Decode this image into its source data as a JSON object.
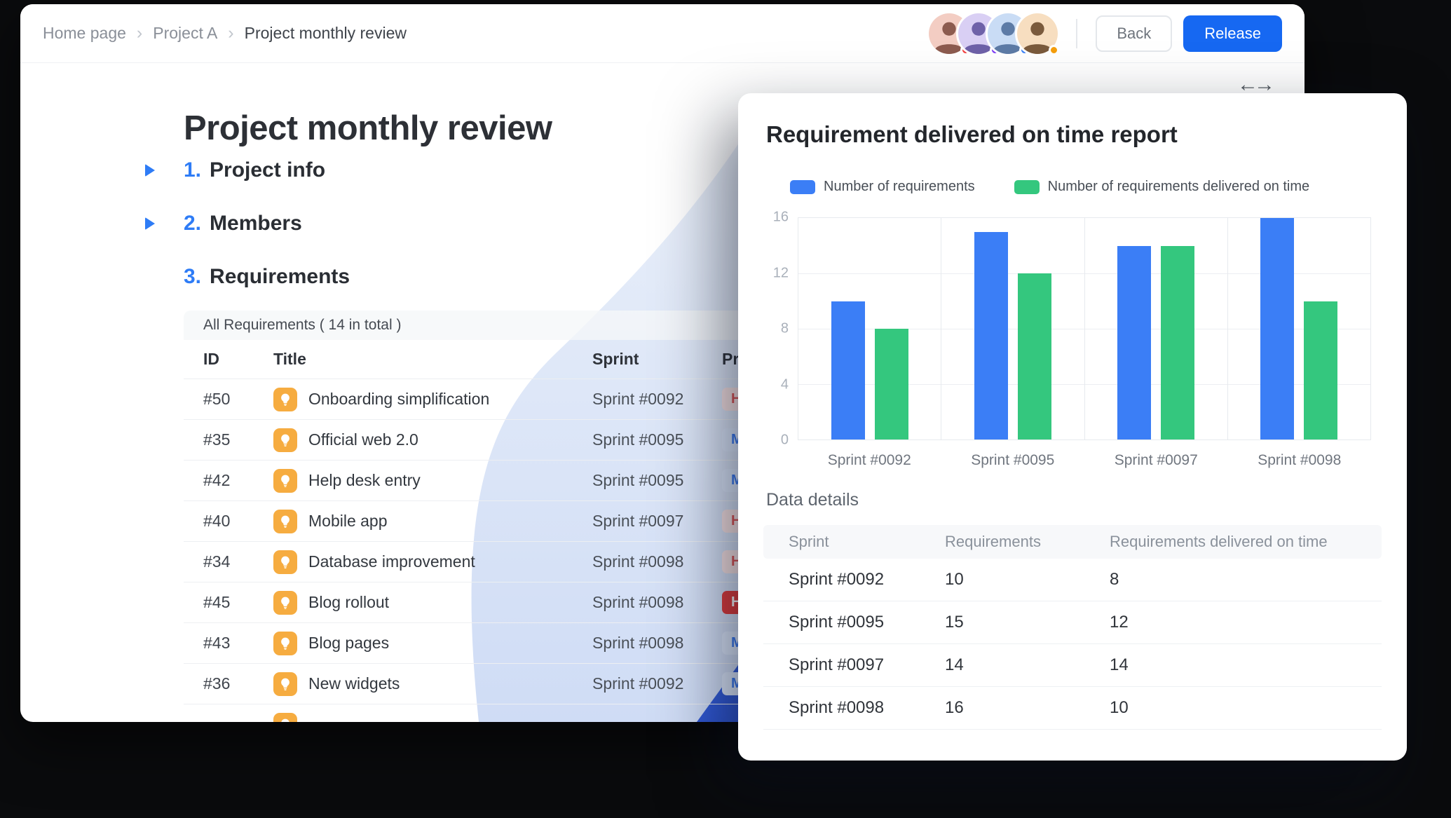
{
  "window": {
    "breadcrumb": {
      "items": [
        "Home page",
        "Project A",
        "Project monthly review"
      ],
      "chevron": "›"
    },
    "toolbar": {
      "back_label": "Back",
      "release_label": "Release",
      "release_color": "#1668F2"
    },
    "avatars": [
      {
        "bg": "#F3CDC3",
        "person": "#8C5B4F",
        "status_color": "#F23E3E"
      },
      {
        "bg": "#D9CFF4",
        "person": "#6E61A8",
        "status_color": "#7C3BF5"
      },
      {
        "bg": "#C9DCF5",
        "person": "#5D7BA6",
        "status_color": "#3B82F6"
      },
      {
        "bg": "#F7DEC0",
        "person": "#7A5A3C",
        "status_color": "#F59E0B"
      }
    ],
    "expand_icon": "←→"
  },
  "document": {
    "title": "Project monthly review",
    "sections": [
      {
        "number": "1.",
        "label": "Project info",
        "marker": true
      },
      {
        "number": "2.",
        "label": "Members",
        "marker": true
      },
      {
        "number": "3.",
        "label": "Requirements",
        "marker": false
      }
    ],
    "requirements_table": {
      "caption": "All Requirements ( 14 in total )",
      "columns": [
        "ID",
        "Title",
        "Sprint",
        "Priority"
      ],
      "rows": [
        {
          "id": "#50",
          "title": "Onboarding simplification",
          "sprint": "Sprint #0092",
          "priority": "High",
          "priority_style": "high"
        },
        {
          "id": "#35",
          "title": "Official web 2.0",
          "sprint": "Sprint #0095",
          "priority": "Medium",
          "priority_style": "medium"
        },
        {
          "id": "#42",
          "title": "Help desk entry",
          "sprint": "Sprint #0095",
          "priority": "Medium",
          "priority_style": "medium"
        },
        {
          "id": "#40",
          "title": "Mobile app",
          "sprint": "Sprint #0097",
          "priority": "High",
          "priority_style": "high"
        },
        {
          "id": "#34",
          "title": "Database improvement",
          "sprint": "Sprint #0098",
          "priority": "High",
          "priority_style": "high"
        },
        {
          "id": "#45",
          "title": "Blog rollout",
          "sprint": "Sprint #0098",
          "priority": "High",
          "priority_style": "high-solid"
        },
        {
          "id": "#43",
          "title": "Blog pages",
          "sprint": "Sprint #0098",
          "priority": "Medium",
          "priority_style": "medium"
        },
        {
          "id": "#36",
          "title": "New widgets",
          "sprint": "Sprint #0092",
          "priority": "Medium",
          "priority_style": "medium"
        },
        {
          "id": "",
          "title": "",
          "sprint": "",
          "priority": "",
          "priority_style": "none"
        }
      ]
    },
    "accent_colors": {
      "wedge_light": "#D8E1F4",
      "wedge_blue": "#2F5FE8",
      "bulb_chip": "#F6AC40"
    }
  },
  "report": {
    "title": "Requirement delivered on time report",
    "chart_data": {
      "type": "bar",
      "categories": [
        "Sprint #0092",
        "Sprint #0095",
        "Sprint #0097",
        "Sprint #0098"
      ],
      "series": [
        {
          "name": "Number of requirements",
          "color": "#3B7EF6",
          "values": [
            10,
            15,
            14,
            16
          ]
        },
        {
          "name": "Number of requirements delivered on time",
          "color": "#34C77E",
          "values": [
            8,
            12,
            14,
            10
          ]
        }
      ],
      "title": "Requirement delivered on time report",
      "xlabel": "",
      "ylabel": "",
      "ylim": [
        0,
        16
      ],
      "yticks": [
        0,
        4,
        8,
        12,
        16
      ],
      "grid": true,
      "legend_position": "top"
    },
    "details": {
      "heading": "Data details",
      "columns": [
        "Sprint",
        "Requirements",
        "Requirements delivered on time"
      ],
      "rows": [
        [
          "Sprint #0092",
          "10",
          "8"
        ],
        [
          "Sprint #0095",
          "15",
          "12"
        ],
        [
          "Sprint #0097",
          "14",
          "14"
        ],
        [
          "Sprint #0098",
          "16",
          "10"
        ]
      ]
    }
  }
}
